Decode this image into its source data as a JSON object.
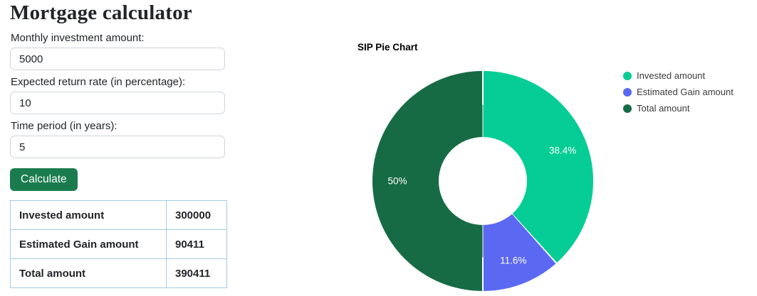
{
  "page": {
    "title": "Mortgage calculator"
  },
  "form": {
    "fields": [
      {
        "label": "Monthly investment amount:",
        "value": "5000"
      },
      {
        "label": "Expected return rate (in percentage):",
        "value": "10"
      },
      {
        "label": "Time period (in years):",
        "value": "5"
      }
    ],
    "calculate_label": "Calculate"
  },
  "results_table": {
    "rows": [
      {
        "label": "Invested amount",
        "value": "300000"
      },
      {
        "label": "Estimated Gain amount",
        "value": "90411"
      },
      {
        "label": "Total amount",
        "value": "390411"
      }
    ]
  },
  "chart_data": {
    "type": "pie",
    "title": "SIP Pie Chart",
    "labels": [
      "Invested amount",
      "Estimated Gain amount",
      "Total amount"
    ],
    "values": [
      38.4,
      11.6,
      50
    ],
    "value_labels": [
      "38.4%",
      "11.6%",
      "50%"
    ],
    "colors": [
      "#06cd95",
      "#5a68f2",
      "#176b44"
    ],
    "donut": true,
    "hole_ratio": 0.4,
    "legend_position": "right",
    "data_label_color": "#ffffff",
    "segment_border_color": "#ffffff"
  },
  "colors": {
    "button_bg": "#1a7c4e",
    "button_text": "#ffffff",
    "table_border": "#a6c9ec",
    "input_border": "#ced4da",
    "text": "#212529"
  }
}
